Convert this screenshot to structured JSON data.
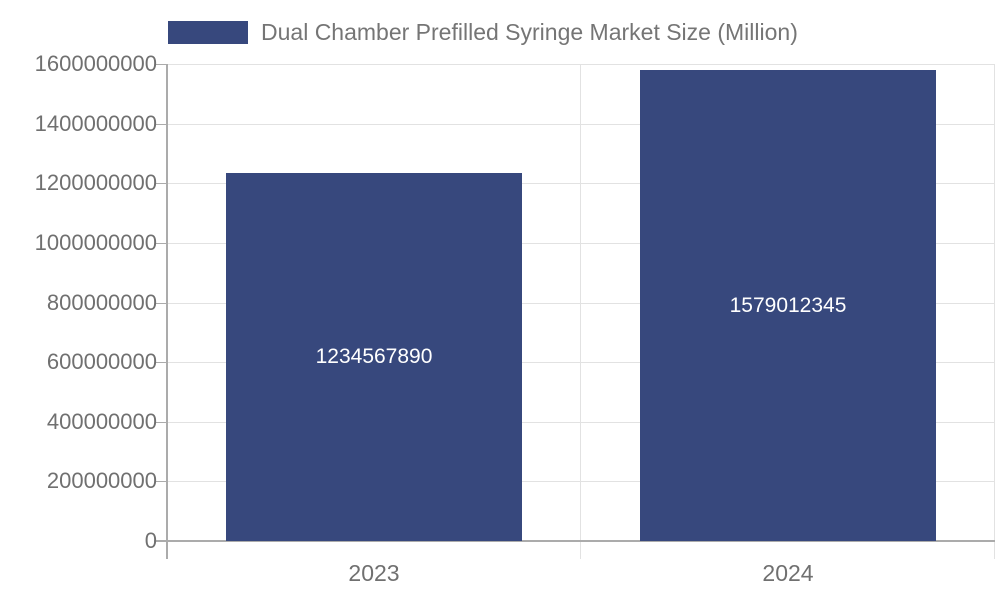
{
  "legend": {
    "label": "Dual Chamber Prefilled Syringe Market Size (Million)",
    "swatch_color": "#37487D"
  },
  "chart_data": {
    "type": "bar",
    "title": "Dual Chamber Prefilled Syringe Market Size (Million)",
    "categories": [
      "2023",
      "2024"
    ],
    "values": [
      1234567890,
      1579012345
    ],
    "bar_labels": [
      "1234567890",
      "1579012345"
    ],
    "xlabel": "",
    "ylabel": "",
    "ylim": [
      0,
      1600000000
    ],
    "yticks": [
      0,
      200000000,
      400000000,
      600000000,
      800000000,
      1000000000,
      1200000000,
      1400000000,
      1600000000
    ],
    "ytick_labels": [
      "0",
      "200000000",
      "400000000",
      "600000000",
      "800000000",
      "1000000000",
      "1200000000",
      "1400000000",
      "1600000000"
    ],
    "grid": true,
    "legend_position": "top-left",
    "colors": {
      "bar": "#37487D",
      "bar_label": "#FFFFFF",
      "tick_label": "#707070",
      "legend_text": "#757575",
      "gridline": "#E2E2E2",
      "axis": "#ABABAB"
    }
  }
}
